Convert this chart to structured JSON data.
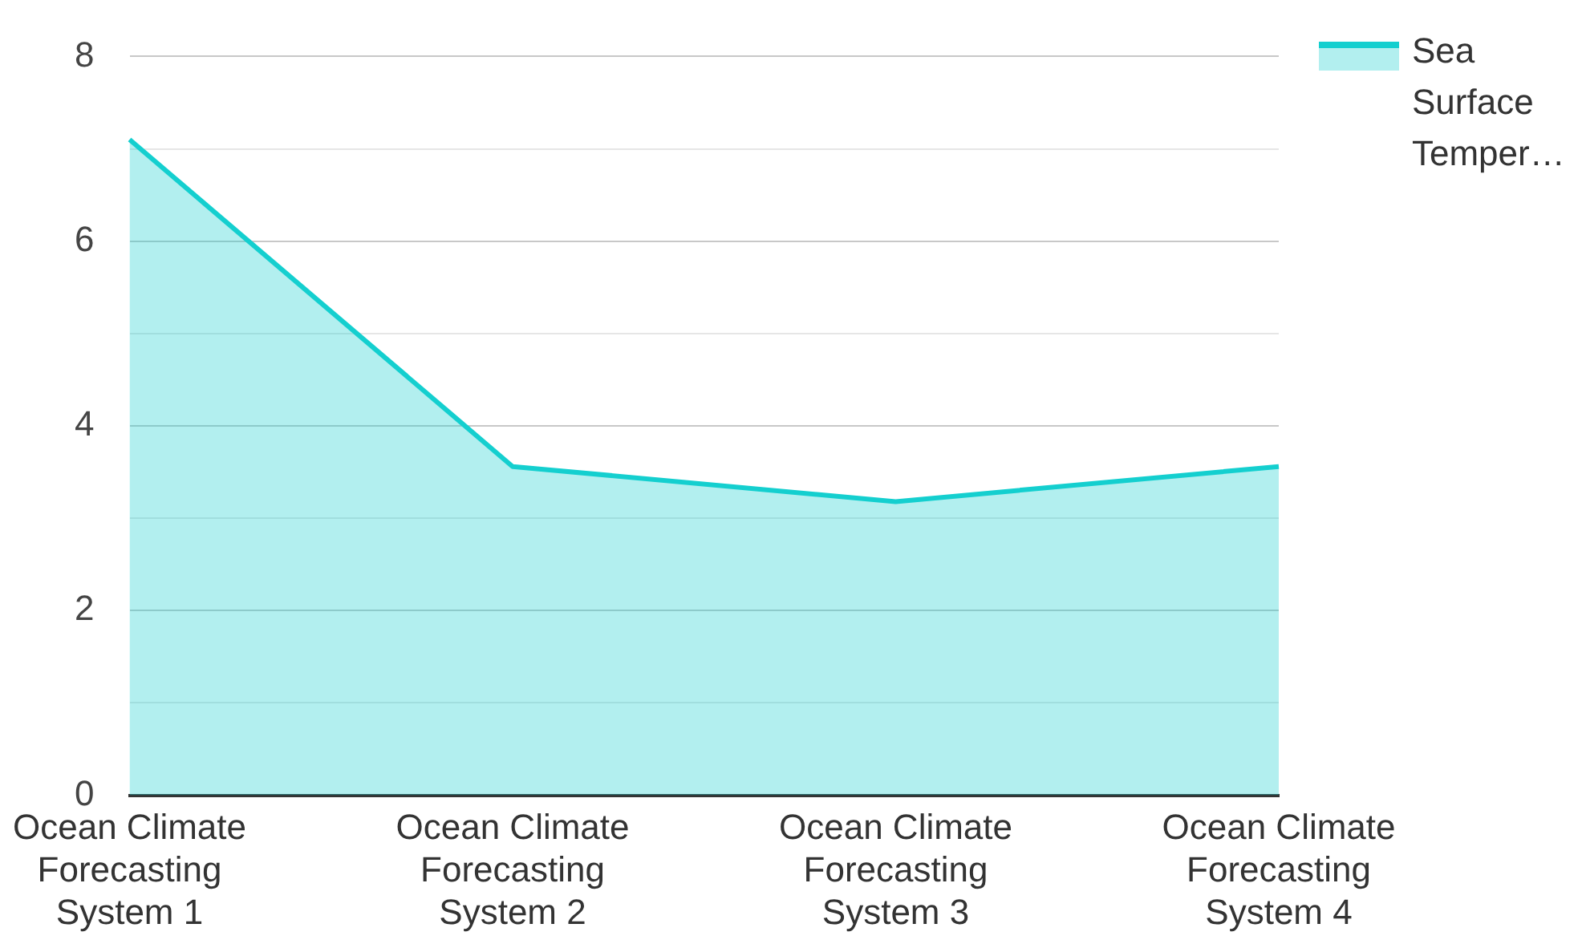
{
  "chart_data": {
    "type": "area",
    "categories": [
      "Ocean Climate Forecasting System 1",
      "Ocean Climate Forecasting System 2",
      "Ocean Climate Forecasting System 3",
      "Ocean Climate Forecasting System 4"
    ],
    "series": [
      {
        "name": "Sea Surface Temper…",
        "color": "#14cfcf",
        "values": [
          7.1,
          3.56,
          3.18,
          3.56
        ]
      }
    ],
    "ylim": [
      0,
      8
    ],
    "yticks": [
      0,
      {
        "value": 1,
        "label": null
      },
      2,
      {
        "value": 3,
        "label": null
      },
      4,
      {
        "value": 5,
        "label": null
      },
      6,
      {
        "value": 7,
        "label": null
      },
      8
    ],
    "grid": "y",
    "legend": "top right"
  }
}
